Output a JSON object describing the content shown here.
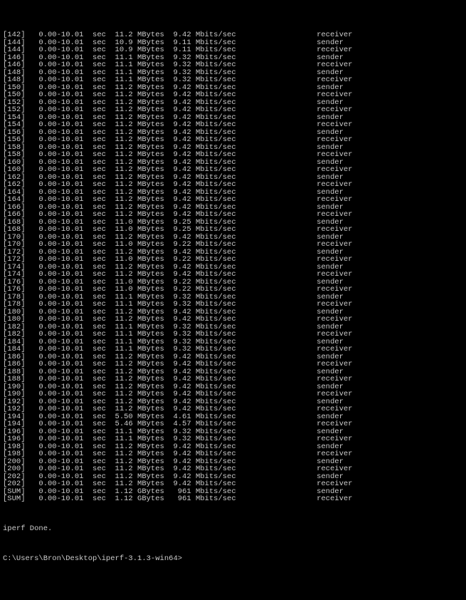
{
  "background_color": "#000000",
  "text_color": "#cccccc",
  "font_family": "Consolas",
  "font_size": 10.5,
  "rows": [
    {
      "id": "142",
      "interval": "0.00-10.01",
      "unit": "sec",
      "transfer": "11.2 MBytes",
      "bandwidth": "9.42 Mbits/sec",
      "role": "receiver"
    },
    {
      "id": "144",
      "interval": "0.00-10.01",
      "unit": "sec",
      "transfer": "10.9 MBytes",
      "bandwidth": "9.11 Mbits/sec",
      "role": "sender"
    },
    {
      "id": "144",
      "interval": "0.00-10.01",
      "unit": "sec",
      "transfer": "10.9 MBytes",
      "bandwidth": "9.11 Mbits/sec",
      "role": "receiver"
    },
    {
      "id": "146",
      "interval": "0.00-10.01",
      "unit": "sec",
      "transfer": "11.1 MBytes",
      "bandwidth": "9.32 Mbits/sec",
      "role": "sender"
    },
    {
      "id": "146",
      "interval": "0.00-10.01",
      "unit": "sec",
      "transfer": "11.1 MBytes",
      "bandwidth": "9.32 Mbits/sec",
      "role": "receiver"
    },
    {
      "id": "148",
      "interval": "0.00-10.01",
      "unit": "sec",
      "transfer": "11.1 MBytes",
      "bandwidth": "9.32 Mbits/sec",
      "role": "sender"
    },
    {
      "id": "148",
      "interval": "0.00-10.01",
      "unit": "sec",
      "transfer": "11.1 MBytes",
      "bandwidth": "9.32 Mbits/sec",
      "role": "receiver"
    },
    {
      "id": "150",
      "interval": "0.00-10.01",
      "unit": "sec",
      "transfer": "11.2 MBytes",
      "bandwidth": "9.42 Mbits/sec",
      "role": "sender"
    },
    {
      "id": "150",
      "interval": "0.00-10.01",
      "unit": "sec",
      "transfer": "11.2 MBytes",
      "bandwidth": "9.42 Mbits/sec",
      "role": "receiver"
    },
    {
      "id": "152",
      "interval": "0.00-10.01",
      "unit": "sec",
      "transfer": "11.2 MBytes",
      "bandwidth": "9.42 Mbits/sec",
      "role": "sender"
    },
    {
      "id": "152",
      "interval": "0.00-10.01",
      "unit": "sec",
      "transfer": "11.2 MBytes",
      "bandwidth": "9.42 Mbits/sec",
      "role": "receiver"
    },
    {
      "id": "154",
      "interval": "0.00-10.01",
      "unit": "sec",
      "transfer": "11.2 MBytes",
      "bandwidth": "9.42 Mbits/sec",
      "role": "sender"
    },
    {
      "id": "154",
      "interval": "0.00-10.01",
      "unit": "sec",
      "transfer": "11.2 MBytes",
      "bandwidth": "9.42 Mbits/sec",
      "role": "receiver"
    },
    {
      "id": "156",
      "interval": "0.00-10.01",
      "unit": "sec",
      "transfer": "11.2 MBytes",
      "bandwidth": "9.42 Mbits/sec",
      "role": "sender"
    },
    {
      "id": "156",
      "interval": "0.00-10.01",
      "unit": "sec",
      "transfer": "11.2 MBytes",
      "bandwidth": "9.42 Mbits/sec",
      "role": "receiver"
    },
    {
      "id": "158",
      "interval": "0.00-10.01",
      "unit": "sec",
      "transfer": "11.2 MBytes",
      "bandwidth": "9.42 Mbits/sec",
      "role": "sender"
    },
    {
      "id": "158",
      "interval": "0.00-10.01",
      "unit": "sec",
      "transfer": "11.2 MBytes",
      "bandwidth": "9.42 Mbits/sec",
      "role": "receiver"
    },
    {
      "id": "160",
      "interval": "0.00-10.01",
      "unit": "sec",
      "transfer": "11.2 MBytes",
      "bandwidth": "9.42 Mbits/sec",
      "role": "sender"
    },
    {
      "id": "160",
      "interval": "0.00-10.01",
      "unit": "sec",
      "transfer": "11.2 MBytes",
      "bandwidth": "9.42 Mbits/sec",
      "role": "receiver"
    },
    {
      "id": "162",
      "interval": "0.00-10.01",
      "unit": "sec",
      "transfer": "11.2 MBytes",
      "bandwidth": "9.42 Mbits/sec",
      "role": "sender"
    },
    {
      "id": "162",
      "interval": "0.00-10.01",
      "unit": "sec",
      "transfer": "11.2 MBytes",
      "bandwidth": "9.42 Mbits/sec",
      "role": "receiver"
    },
    {
      "id": "164",
      "interval": "0.00-10.01",
      "unit": "sec",
      "transfer": "11.2 MBytes",
      "bandwidth": "9.42 Mbits/sec",
      "role": "sender"
    },
    {
      "id": "164",
      "interval": "0.00-10.01",
      "unit": "sec",
      "transfer": "11.2 MBytes",
      "bandwidth": "9.42 Mbits/sec",
      "role": "receiver"
    },
    {
      "id": "166",
      "interval": "0.00-10.01",
      "unit": "sec",
      "transfer": "11.2 MBytes",
      "bandwidth": "9.42 Mbits/sec",
      "role": "sender"
    },
    {
      "id": "166",
      "interval": "0.00-10.01",
      "unit": "sec",
      "transfer": "11.2 MBytes",
      "bandwidth": "9.42 Mbits/sec",
      "role": "receiver"
    },
    {
      "id": "168",
      "interval": "0.00-10.01",
      "unit": "sec",
      "transfer": "11.0 MBytes",
      "bandwidth": "9.25 Mbits/sec",
      "role": "sender"
    },
    {
      "id": "168",
      "interval": "0.00-10.01",
      "unit": "sec",
      "transfer": "11.0 MBytes",
      "bandwidth": "9.25 Mbits/sec",
      "role": "receiver"
    },
    {
      "id": "170",
      "interval": "0.00-10.01",
      "unit": "sec",
      "transfer": "11.2 MBytes",
      "bandwidth": "9.42 Mbits/sec",
      "role": "sender"
    },
    {
      "id": "170",
      "interval": "0.00-10.01",
      "unit": "sec",
      "transfer": "11.0 MBytes",
      "bandwidth": "9.22 Mbits/sec",
      "role": "receiver"
    },
    {
      "id": "172",
      "interval": "0.00-10.01",
      "unit": "sec",
      "transfer": "11.2 MBytes",
      "bandwidth": "9.42 Mbits/sec",
      "role": "sender"
    },
    {
      "id": "172",
      "interval": "0.00-10.01",
      "unit": "sec",
      "transfer": "11.0 MBytes",
      "bandwidth": "9.22 Mbits/sec",
      "role": "receiver"
    },
    {
      "id": "174",
      "interval": "0.00-10.01",
      "unit": "sec",
      "transfer": "11.2 MBytes",
      "bandwidth": "9.42 Mbits/sec",
      "role": "sender"
    },
    {
      "id": "174",
      "interval": "0.00-10.01",
      "unit": "sec",
      "transfer": "11.2 MBytes",
      "bandwidth": "9.42 Mbits/sec",
      "role": "receiver"
    },
    {
      "id": "176",
      "interval": "0.00-10.01",
      "unit": "sec",
      "transfer": "11.0 MBytes",
      "bandwidth": "9.22 Mbits/sec",
      "role": "sender"
    },
    {
      "id": "176",
      "interval": "0.00-10.01",
      "unit": "sec",
      "transfer": "11.0 MBytes",
      "bandwidth": "9.22 Mbits/sec",
      "role": "receiver"
    },
    {
      "id": "178",
      "interval": "0.00-10.01",
      "unit": "sec",
      "transfer": "11.1 MBytes",
      "bandwidth": "9.32 Mbits/sec",
      "role": "sender"
    },
    {
      "id": "178",
      "interval": "0.00-10.01",
      "unit": "sec",
      "transfer": "11.1 MBytes",
      "bandwidth": "9.32 Mbits/sec",
      "role": "receiver"
    },
    {
      "id": "180",
      "interval": "0.00-10.01",
      "unit": "sec",
      "transfer": "11.2 MBytes",
      "bandwidth": "9.42 Mbits/sec",
      "role": "sender"
    },
    {
      "id": "180",
      "interval": "0.00-10.01",
      "unit": "sec",
      "transfer": "11.2 MBytes",
      "bandwidth": "9.42 Mbits/sec",
      "role": "receiver"
    },
    {
      "id": "182",
      "interval": "0.00-10.01",
      "unit": "sec",
      "transfer": "11.1 MBytes",
      "bandwidth": "9.32 Mbits/sec",
      "role": "sender"
    },
    {
      "id": "182",
      "interval": "0.00-10.01",
      "unit": "sec",
      "transfer": "11.1 MBytes",
      "bandwidth": "9.32 Mbits/sec",
      "role": "receiver"
    },
    {
      "id": "184",
      "interval": "0.00-10.01",
      "unit": "sec",
      "transfer": "11.1 MBytes",
      "bandwidth": "9.32 Mbits/sec",
      "role": "sender"
    },
    {
      "id": "184",
      "interval": "0.00-10.01",
      "unit": "sec",
      "transfer": "11.1 MBytes",
      "bandwidth": "9.32 Mbits/sec",
      "role": "receiver"
    },
    {
      "id": "186",
      "interval": "0.00-10.01",
      "unit": "sec",
      "transfer": "11.2 MBytes",
      "bandwidth": "9.42 Mbits/sec",
      "role": "sender"
    },
    {
      "id": "186",
      "interval": "0.00-10.01",
      "unit": "sec",
      "transfer": "11.2 MBytes",
      "bandwidth": "9.42 Mbits/sec",
      "role": "receiver"
    },
    {
      "id": "188",
      "interval": "0.00-10.01",
      "unit": "sec",
      "transfer": "11.2 MBytes",
      "bandwidth": "9.42 Mbits/sec",
      "role": "sender"
    },
    {
      "id": "188",
      "interval": "0.00-10.01",
      "unit": "sec",
      "transfer": "11.2 MBytes",
      "bandwidth": "9.42 Mbits/sec",
      "role": "receiver"
    },
    {
      "id": "190",
      "interval": "0.00-10.01",
      "unit": "sec",
      "transfer": "11.2 MBytes",
      "bandwidth": "9.42 Mbits/sec",
      "role": "sender"
    },
    {
      "id": "190",
      "interval": "0.00-10.01",
      "unit": "sec",
      "transfer": "11.2 MBytes",
      "bandwidth": "9.42 Mbits/sec",
      "role": "receiver"
    },
    {
      "id": "192",
      "interval": "0.00-10.01",
      "unit": "sec",
      "transfer": "11.2 MBytes",
      "bandwidth": "9.42 Mbits/sec",
      "role": "sender"
    },
    {
      "id": "192",
      "interval": "0.00-10.01",
      "unit": "sec",
      "transfer": "11.2 MBytes",
      "bandwidth": "9.42 Mbits/sec",
      "role": "receiver"
    },
    {
      "id": "194",
      "interval": "0.00-10.01",
      "unit": "sec",
      "transfer": "5.50 MBytes",
      "bandwidth": "4.61 Mbits/sec",
      "role": "sender"
    },
    {
      "id": "194",
      "interval": "0.00-10.01",
      "unit": "sec",
      "transfer": "5.46 MBytes",
      "bandwidth": "4.57 Mbits/sec",
      "role": "receiver"
    },
    {
      "id": "196",
      "interval": "0.00-10.01",
      "unit": "sec",
      "transfer": "11.1 MBytes",
      "bandwidth": "9.32 Mbits/sec",
      "role": "sender"
    },
    {
      "id": "196",
      "interval": "0.00-10.01",
      "unit": "sec",
      "transfer": "11.1 MBytes",
      "bandwidth": "9.32 Mbits/sec",
      "role": "receiver"
    },
    {
      "id": "198",
      "interval": "0.00-10.01",
      "unit": "sec",
      "transfer": "11.2 MBytes",
      "bandwidth": "9.42 Mbits/sec",
      "role": "sender"
    },
    {
      "id": "198",
      "interval": "0.00-10.01",
      "unit": "sec",
      "transfer": "11.2 MBytes",
      "bandwidth": "9.42 Mbits/sec",
      "role": "receiver"
    },
    {
      "id": "200",
      "interval": "0.00-10.01",
      "unit": "sec",
      "transfer": "11.2 MBytes",
      "bandwidth": "9.42 Mbits/sec",
      "role": "sender"
    },
    {
      "id": "200",
      "interval": "0.00-10.01",
      "unit": "sec",
      "transfer": "11.2 MBytes",
      "bandwidth": "9.42 Mbits/sec",
      "role": "receiver"
    },
    {
      "id": "202",
      "interval": "0.00-10.01",
      "unit": "sec",
      "transfer": "11.2 MBytes",
      "bandwidth": "9.42 Mbits/sec",
      "role": "sender"
    },
    {
      "id": "202",
      "interval": "0.00-10.01",
      "unit": "sec",
      "transfer": "11.2 MBytes",
      "bandwidth": "9.42 Mbits/sec",
      "role": "receiver"
    },
    {
      "id": "SUM",
      "interval": "0.00-10.01",
      "unit": "sec",
      "transfer": "1.12 GBytes",
      "bandwidth": " 961 Mbits/sec",
      "role": "sender"
    },
    {
      "id": "SUM",
      "interval": "0.00-10.01",
      "unit": "sec",
      "transfer": "1.12 GBytes",
      "bandwidth": " 961 Mbits/sec",
      "role": "receiver"
    }
  ],
  "done_message": "iperf Done.",
  "prompt": "C:\\Users\\Bron\\Desktop\\iperf-3.1.3-win64>"
}
